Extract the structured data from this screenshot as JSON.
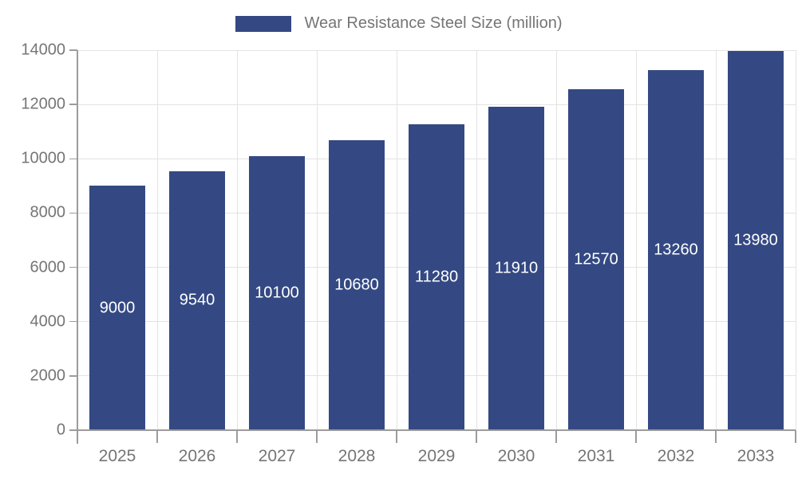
{
  "legend": {
    "items": [
      {
        "label": "Wear Resistance Steel Size (million)",
        "color": "#344983"
      }
    ]
  },
  "chart_data": {
    "type": "bar",
    "title": "",
    "categories": [
      "2025",
      "2026",
      "2027",
      "2028",
      "2029",
      "2030",
      "2031",
      "2032",
      "2033"
    ],
    "series": [
      {
        "name": "Wear Resistance Steel Size (million)",
        "values": [
          9000,
          9540,
          10100,
          10680,
          11280,
          11910,
          12570,
          13260,
          13980
        ],
        "color": "#344983"
      }
    ],
    "xlabel": "",
    "ylabel": "",
    "ylim": [
      0,
      14000
    ],
    "yticks": [
      0,
      2000,
      4000,
      6000,
      8000,
      10000,
      12000,
      14000
    ],
    "grid": true,
    "legend_position": "top-center",
    "bar_labels": {
      "show": true,
      "color": "#ffffff",
      "position": "inside-center"
    }
  },
  "colors": {
    "axis_line": "#9c9c9c",
    "grid_line": "#e3e3e3",
    "tick_text": "#757575",
    "legend_text": "#757575",
    "background": "#ffffff"
  }
}
